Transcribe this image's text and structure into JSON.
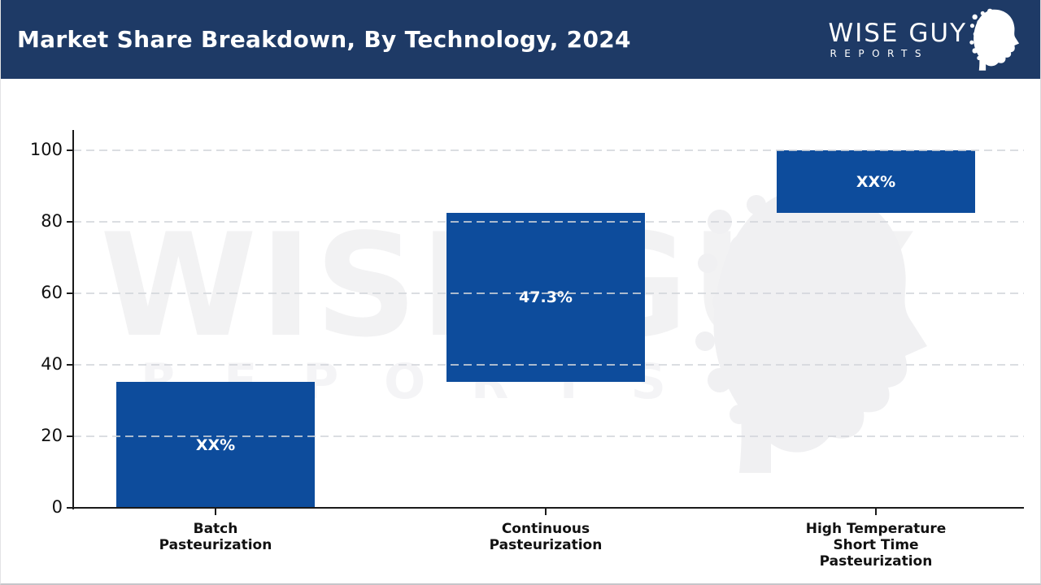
{
  "header": {
    "title": "Market Share Breakdown, By Technology, 2024",
    "logo": {
      "line1": "WISE GUY",
      "line2": "REPORTS"
    }
  },
  "watermark": {
    "line1": "WISE GUY",
    "line2": "REPORTS"
  },
  "colors": {
    "header_bg": "#1e3a66",
    "bar_fill": "#0d4c9c",
    "bar_label_text": "#ffffff",
    "gridline": "#d2d5da",
    "axis": "#1a1a1a",
    "tick_text": "#111111"
  },
  "chart_data": {
    "type": "bar",
    "subtype": "waterfall-floating-bars",
    "title": "Market Share Breakdown, By Technology, 2024",
    "categories": [
      [
        "Batch",
        "Pasteurization"
      ],
      [
        "Continuous",
        "Pasteurization"
      ],
      [
        "High Temperature",
        "Short Time",
        "Pasteurization"
      ]
    ],
    "series": [
      {
        "name": "Market share (%)",
        "segments": [
          {
            "category": "Batch Pasteurization",
            "start": 0,
            "end": 35.2,
            "value_label": "XX%"
          },
          {
            "category": "Continuous Pasteurization",
            "start": 35.2,
            "end": 82.5,
            "value_label": "47.3%"
          },
          {
            "category": "High Temperature Short Time Pasteurization",
            "start": 82.5,
            "end": 100,
            "value_label": "XX%"
          }
        ]
      }
    ],
    "xlabel": "",
    "ylabel": "",
    "ylim": [
      0,
      100
    ],
    "yticks": [
      0,
      20,
      40,
      60,
      80,
      100
    ],
    "grid": "dashed-horizontal-over-bars",
    "legend": "none"
  }
}
